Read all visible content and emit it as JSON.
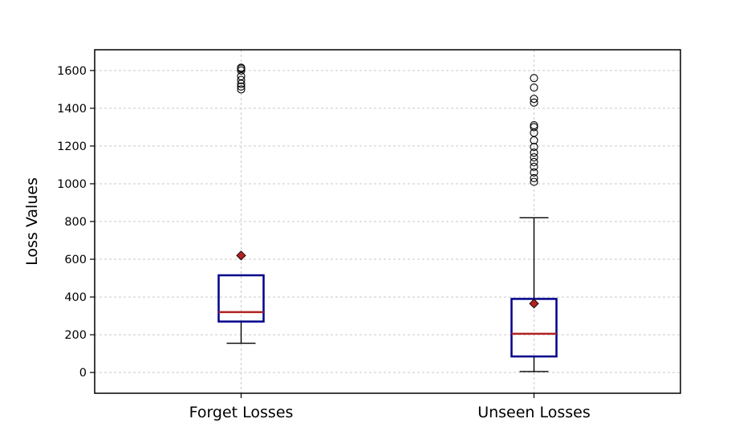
{
  "chart_data": {
    "type": "boxplot",
    "title": "",
    "xlabel": "",
    "ylabel": "Loss Values",
    "categories": [
      "Forget Losses",
      "Unseen Losses"
    ],
    "yticks": [
      0,
      200,
      400,
      600,
      800,
      1000,
      1200,
      1400,
      1600
    ],
    "ylim": [
      -110,
      1710
    ],
    "grid": true,
    "grid_style": "dashed",
    "series": [
      {
        "name": "Forget Losses",
        "q1": 270,
        "median": 320,
        "q3": 515,
        "whisker_low": 155,
        "whisker_high": 515,
        "mean": 620,
        "outliers": [
          1500,
          1515,
          1530,
          1550,
          1570,
          1600,
          1610,
          1615
        ]
      },
      {
        "name": "Unseen Losses",
        "q1": 85,
        "median": 205,
        "q3": 390,
        "whisker_low": 5,
        "whisker_high": 820,
        "mean": 365,
        "outliers": [
          1010,
          1030,
          1060,
          1090,
          1115,
          1140,
          1165,
          1195,
          1230,
          1270,
          1300,
          1310,
          1430,
          1450,
          1510,
          1560
        ]
      }
    ],
    "style": {
      "box_color": "#00008b",
      "median_color": "#b22222",
      "mean_fill": "#b22222",
      "mean_edge": "#000000",
      "whisker_color": "#000000",
      "outlier_edge": "#000000",
      "grid_color": "#c9c9c9",
      "axis_color": "#000000",
      "background": "#ffffff"
    }
  }
}
